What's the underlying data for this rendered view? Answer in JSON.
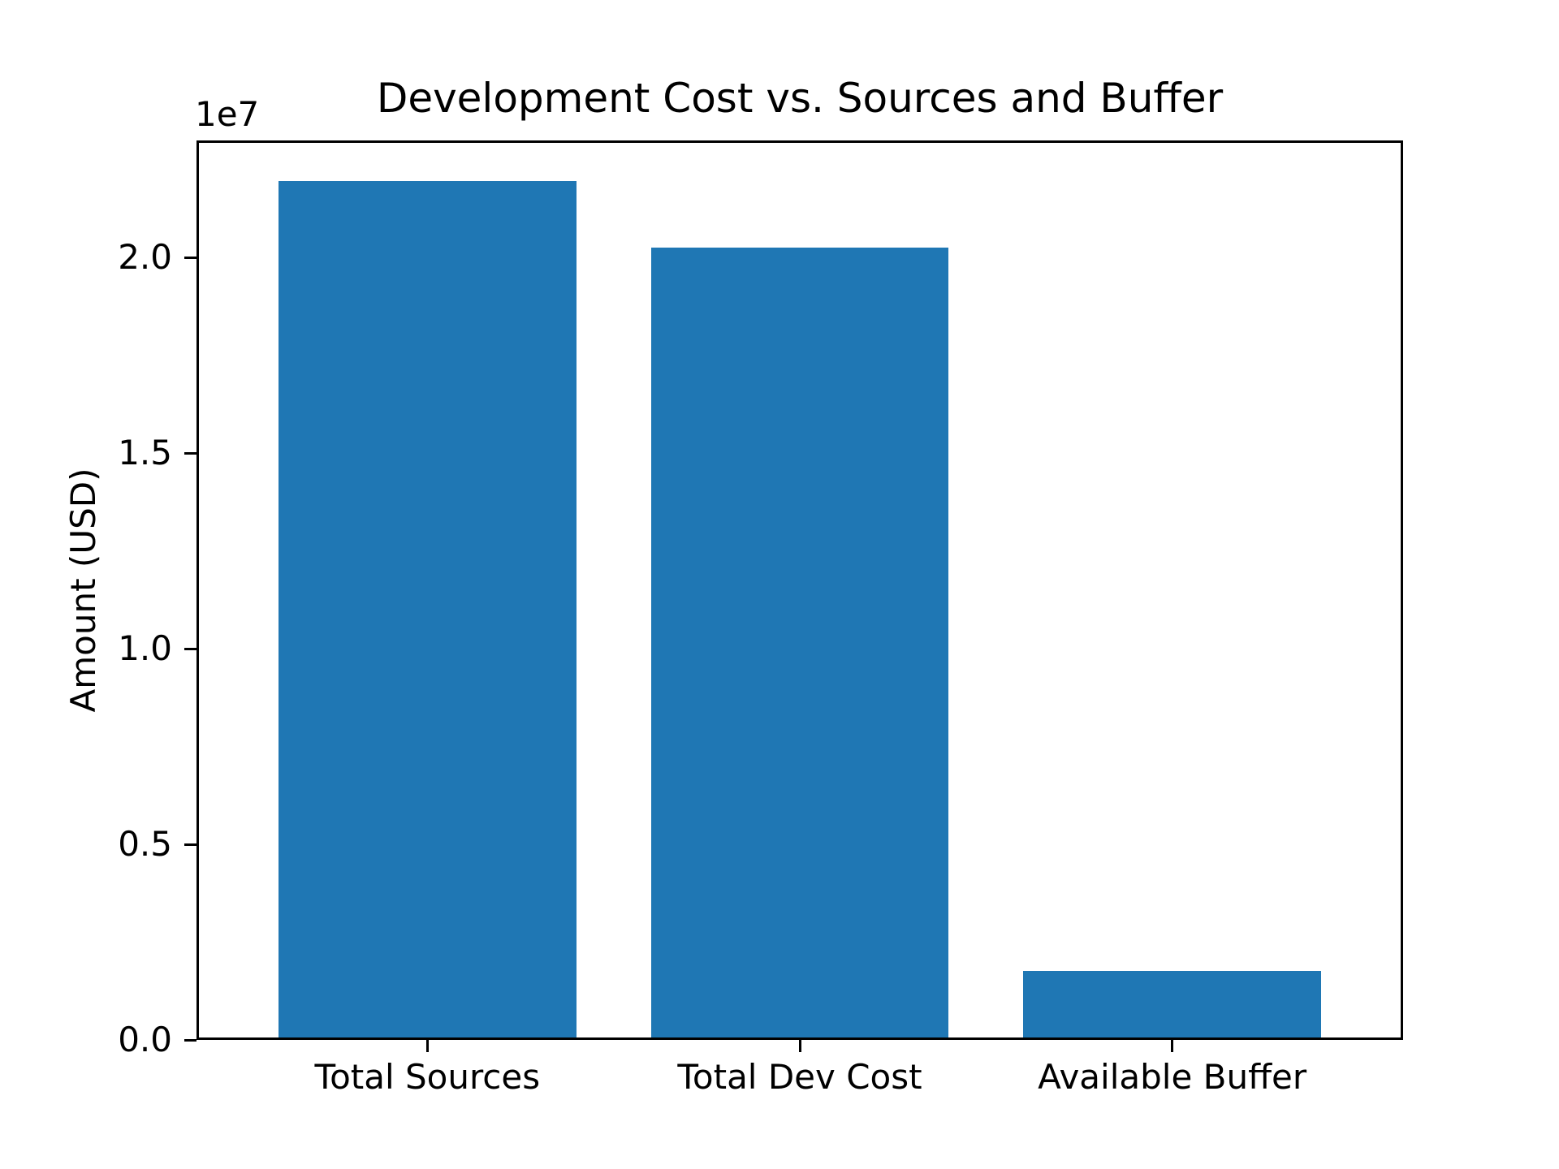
{
  "figure": {
    "background": "#ffffff",
    "text_color": "#000000"
  },
  "title": "Development Cost vs. Sources and Buffer",
  "y_axis_offset_label": "1e7",
  "chart_data": {
    "type": "bar",
    "title": "Development Cost vs. Sources and Buffer",
    "xlabel": "",
    "ylabel": "Amount (USD)",
    "categories": [
      "Total Sources",
      "Total Dev Cost",
      "Available Buffer"
    ],
    "values": [
      21900000,
      20200000,
      1700000
    ],
    "bar_color": "#1f77b4",
    "ylim": [
      0,
      22995000
    ],
    "yticks": [
      0,
      5000000,
      10000000,
      15000000,
      20000000
    ],
    "ytick_labels": [
      "0.0",
      "0.5",
      "1.0",
      "1.5",
      "2.0"
    ],
    "offset_multiplier_label": "1e7",
    "grid": false,
    "legend_position": "none"
  }
}
